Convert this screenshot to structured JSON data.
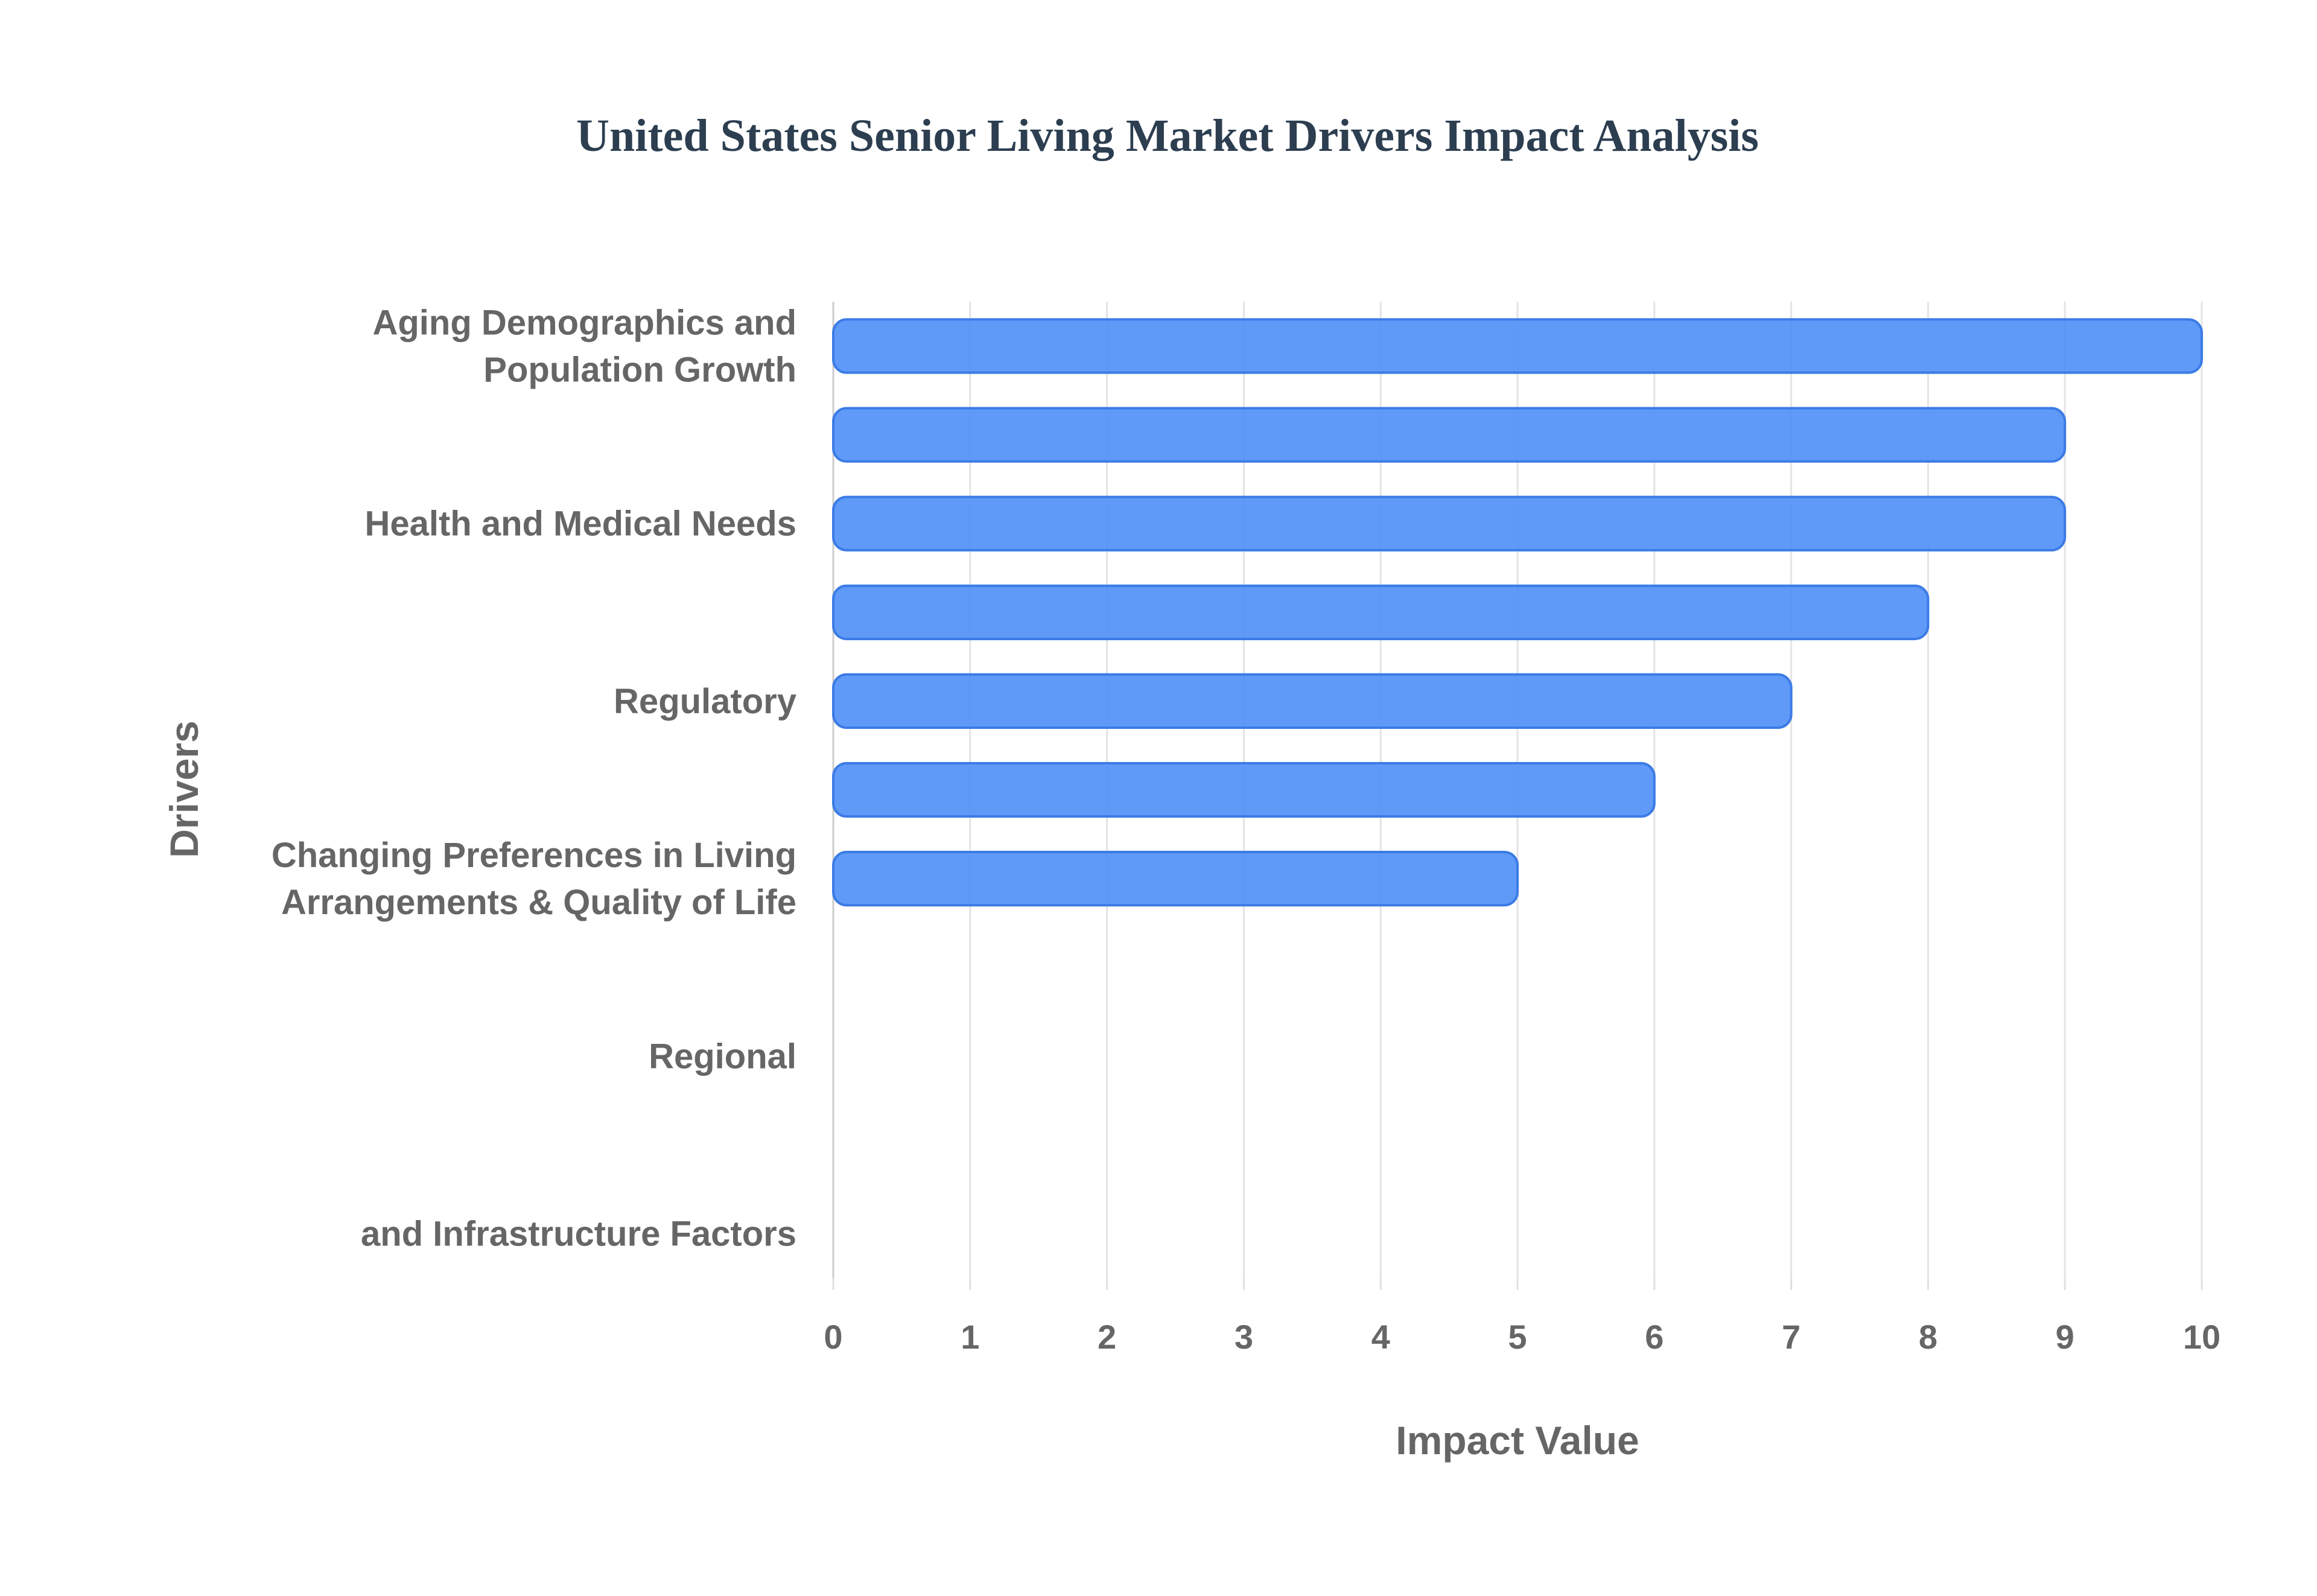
{
  "chart_data": {
    "type": "bar",
    "orientation": "horizontal",
    "title": "United States Senior Living Market Drivers Impact Analysis",
    "xlabel": "Impact Value",
    "ylabel": "Drivers",
    "xlim": [
      0,
      10
    ],
    "x_ticks": [
      "0",
      "1",
      "2",
      "3",
      "4",
      "5",
      "6",
      "7",
      "8",
      "9",
      "10"
    ],
    "grid": "vertical",
    "categories": [
      [
        "Aging Demographics and",
        "Population Growth"
      ],
      [],
      [
        "Health and Medical Needs"
      ],
      [],
      [
        "Regulatory"
      ],
      [],
      [
        "Changing Preferences in Living",
        "Arrangements & Quality of Life"
      ],
      [],
      [
        "Regional"
      ],
      [],
      [
        "and Infrastructure Factors"
      ]
    ],
    "values": [
      10,
      9,
      9,
      8,
      7,
      6,
      5,
      null,
      null,
      null,
      null
    ],
    "bar_color": "#4f8ff7",
    "bar_border_color": "#3b7be6"
  }
}
